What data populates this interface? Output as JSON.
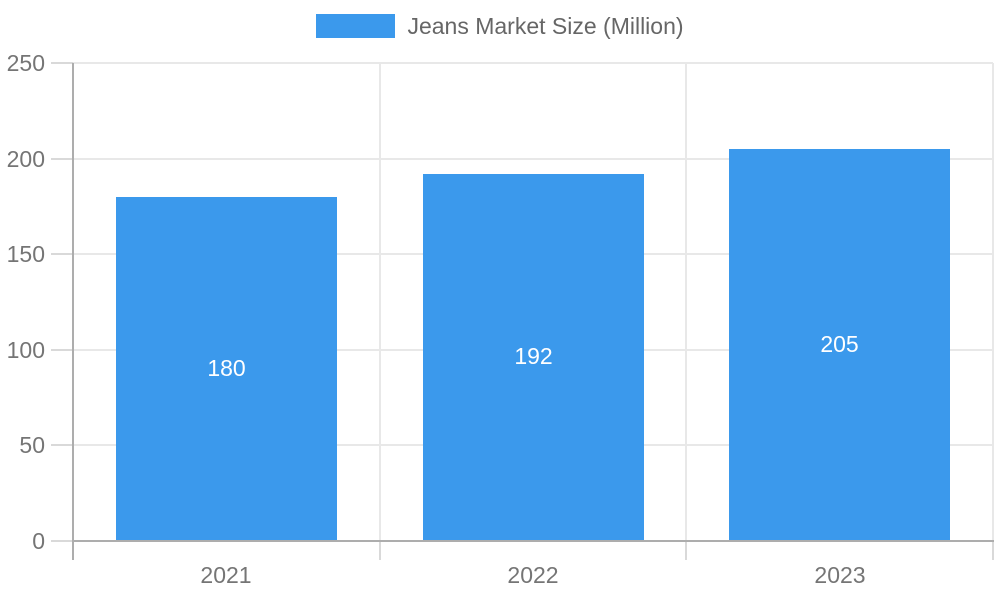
{
  "chart_data": {
    "type": "bar",
    "title": "Jeans Market Size (Million)",
    "categories": [
      "2021",
      "2022",
      "2023"
    ],
    "series": [
      {
        "name": "Jeans Market Size (Million)",
        "values": [
          180,
          192,
          205
        ],
        "color": "#3B99EC"
      }
    ],
    "ylim": [
      0,
      250
    ],
    "yticks": [
      0,
      50,
      100,
      150,
      200,
      250
    ],
    "grid": true,
    "legend_position": "top",
    "value_labels": {
      "position": "inside-center",
      "color": "#ffffff"
    }
  },
  "colors": {
    "bar": "#3B99EC",
    "legend_text": "#666666",
    "axis_label": "#757575",
    "grid": "#e8e8e8",
    "tick": "#d9d9d9",
    "axis_line": "#adadad",
    "background": "#ffffff"
  }
}
